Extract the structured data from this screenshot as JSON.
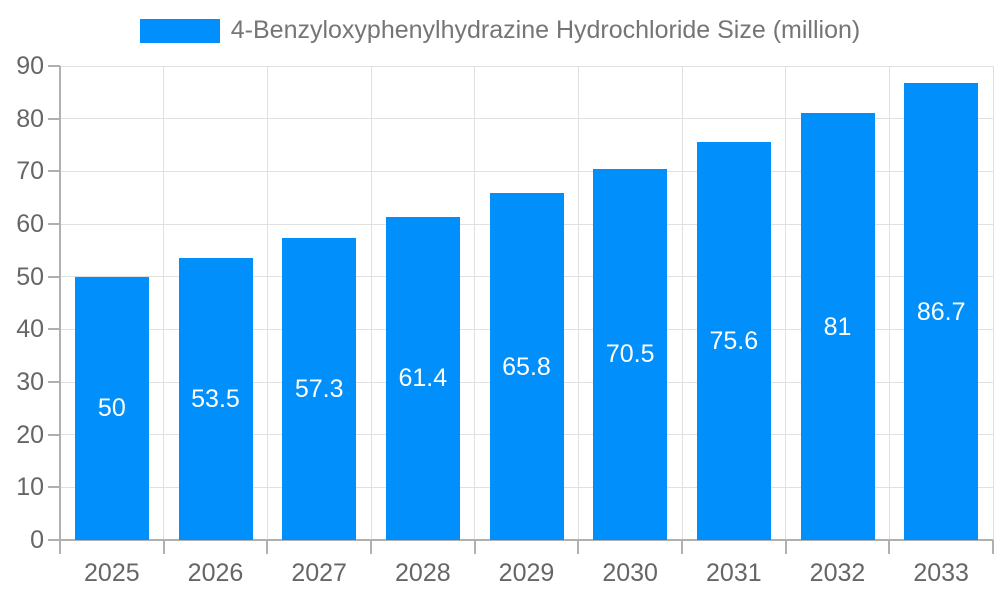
{
  "legend": {
    "label": "4-Benzyloxyphenylhydrazine Hydrochloride Size (million)"
  },
  "chart_data": {
    "type": "bar",
    "title": "4-Benzyloxyphenylhydrazine Hydrochloride Size (million)",
    "categories": [
      "2025",
      "2026",
      "2027",
      "2028",
      "2029",
      "2030",
      "2031",
      "2032",
      "2033"
    ],
    "values": [
      50,
      53.5,
      57.3,
      61.4,
      65.8,
      70.5,
      75.6,
      81,
      86.7
    ],
    "value_labels": [
      "50",
      "53.5",
      "57.3",
      "61.4",
      "65.8",
      "70.5",
      "75.6",
      "81",
      "86.7"
    ],
    "xlabel": "",
    "ylabel": "",
    "ylim": [
      0,
      90
    ],
    "ytick_step": 10,
    "ytick_labels": [
      "0",
      "10",
      "20",
      "30",
      "40",
      "50",
      "60",
      "70",
      "80",
      "90"
    ],
    "grid": true,
    "legend_position": "top",
    "value_labels_position": "inside-center",
    "colors": {
      "bar": "#008FFB",
      "grid": "#e0e0e0",
      "axis": "#b0b0b0",
      "tick_label": "#666666",
      "legend_text": "#757575",
      "value_label": "#ffffff",
      "background": "#ffffff"
    }
  }
}
